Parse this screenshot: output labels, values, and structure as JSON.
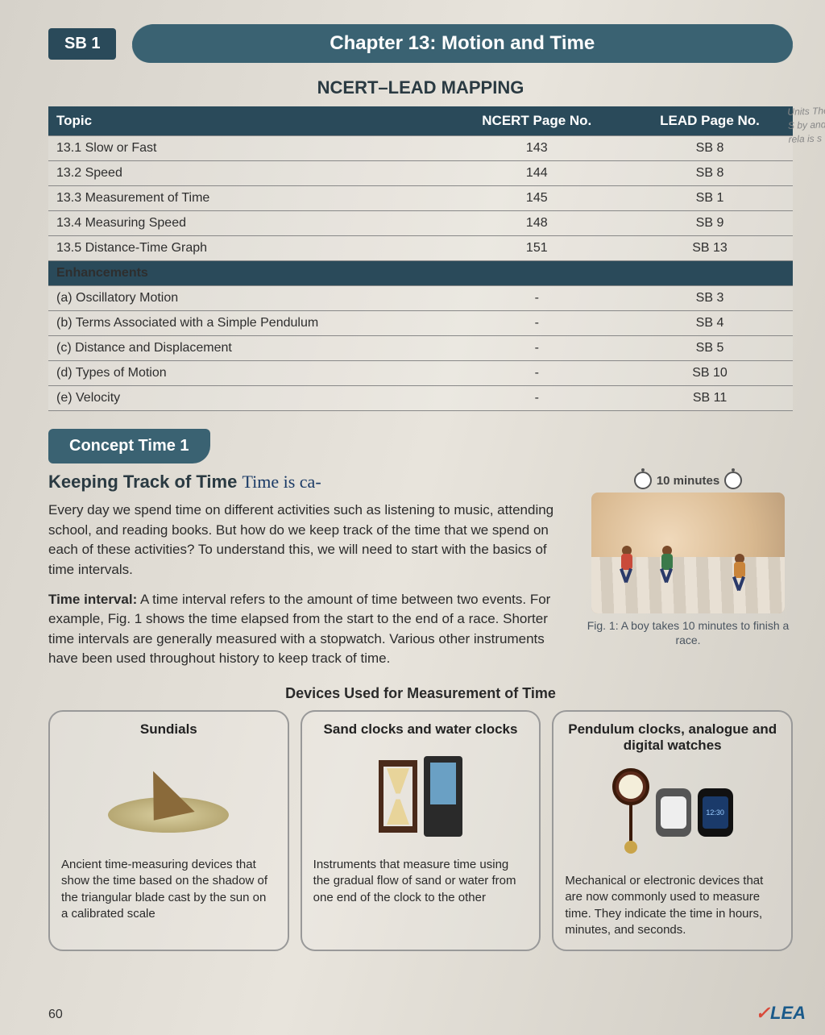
{
  "header": {
    "sb_label": "SB 1",
    "chapter_title": "Chapter 13: Motion and Time"
  },
  "mapping": {
    "title": "NCERT–LEAD MAPPING",
    "columns": [
      "Topic",
      "NCERT Page No.",
      "LEAD Page No."
    ],
    "topics": [
      {
        "label": "13.1  Slow or Fast",
        "ncert": "143",
        "lead": "SB 8"
      },
      {
        "label": "13.2  Speed",
        "ncert": "144",
        "lead": "SB 8"
      },
      {
        "label": "13.3  Measurement of Time",
        "ncert": "145",
        "lead": "SB 1"
      },
      {
        "label": "13.4  Measuring Speed",
        "ncert": "148",
        "lead": "SB 9"
      },
      {
        "label": "13.5  Distance-Time Graph",
        "ncert": "151",
        "lead": "SB 13"
      }
    ],
    "enhancements_header": "Enhancements",
    "enhancements": [
      {
        "label": "(a)  Oscillatory Motion",
        "ncert": "-",
        "lead": "SB 3"
      },
      {
        "label": "(b)  Terms Associated with a Simple Pendulum",
        "ncert": "-",
        "lead": "SB 4"
      },
      {
        "label": "(c)  Distance and Displacement",
        "ncert": "-",
        "lead": "SB 5"
      },
      {
        "label": "(d)  Types of Motion",
        "ncert": "-",
        "lead": "SB 10"
      },
      {
        "label": "(e)  Velocity",
        "ncert": "-",
        "lead": "SB 11"
      }
    ]
  },
  "concept": {
    "badge": "Concept Time 1",
    "heading": "Keeping Track of Time",
    "handwritten": "Time is ca‑",
    "para1": "Every day we spend time on different activities such as listening to music, attending school, and reading books. But how do we keep track of the time that we spend on each of these activities? To understand this, we will need to start with the basics of time intervals.",
    "interval_label": "Time interval:",
    "para2": " A time interval refers to the amount of time between two events. For example, Fig. 1 shows the time elapsed from the start to the end of a race. Shorter time intervals are generally measured with a stopwatch. Various other instruments have been used throughout history to keep track of time.",
    "figure": {
      "ten_min": "10 minutes",
      "caption": "Fig. 1: A boy takes 10 minutes to finish a race."
    }
  },
  "devices": {
    "title": "Devices Used for Measurement of Time",
    "cards": [
      {
        "name": "Sundials",
        "desc": "Ancient time-measuring devices that show the time based on the shadow of the triangular blade cast by the sun on a calibrated scale"
      },
      {
        "name": "Sand clocks and water clocks",
        "desc": "Instruments that measure time using the gradual flow of sand or water from one end of the clock to the other"
      },
      {
        "name": "Pendulum clocks, analogue and digital watches",
        "desc": "Mechanical or electronic devices that are now commonly used to measure time. They indicate the time in hours, minutes, and seconds."
      }
    ]
  },
  "footer": {
    "page_num": "60",
    "brand_prefix": "✓",
    "brand": "LEA"
  },
  "side_scribble": "Units\nThe S\nby\nand\nrela\nis s",
  "colors": {
    "banner": "#3a6272",
    "table_header": "#2a4a5a",
    "page_bg": "#e0dcd3"
  }
}
